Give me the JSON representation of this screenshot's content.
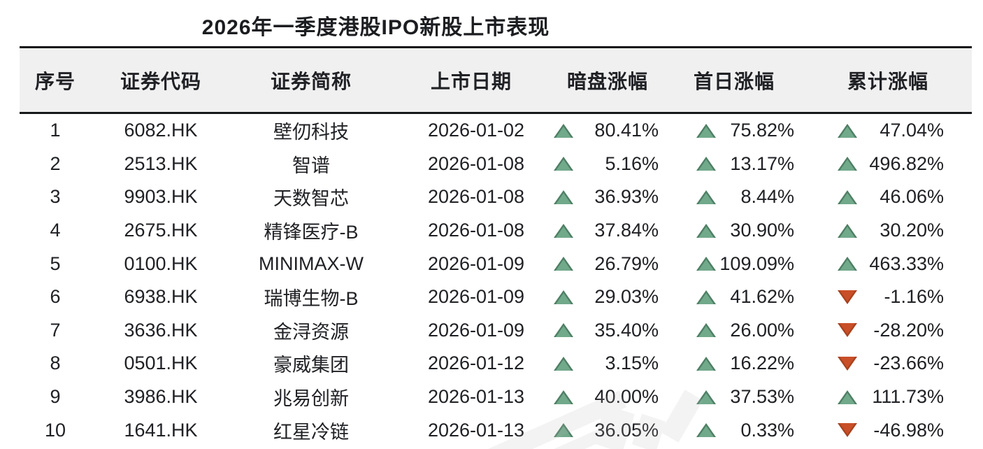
{
  "chart_data": {
    "type": "table",
    "title": "2026年一季度港股IPO新股上市表现",
    "columns": [
      "序号",
      "证券代码",
      "证券简称",
      "上市日期",
      "暗盘涨幅",
      "首日涨幅",
      "累计涨幅"
    ],
    "rows": [
      {
        "seq": "1",
        "code": "6082.HK",
        "name": "壁仞科技",
        "date": "2026-01-02",
        "dark": {
          "value": "80.41%",
          "dir": "up"
        },
        "first": {
          "value": "75.82%",
          "dir": "up"
        },
        "cumulative": {
          "value": "47.04%",
          "dir": "up"
        }
      },
      {
        "seq": "2",
        "code": "2513.HK",
        "name": "智谱",
        "date": "2026-01-08",
        "dark": {
          "value": "5.16%",
          "dir": "up"
        },
        "first": {
          "value": "13.17%",
          "dir": "up"
        },
        "cumulative": {
          "value": "496.82%",
          "dir": "up"
        }
      },
      {
        "seq": "3",
        "code": "9903.HK",
        "name": "天数智芯",
        "date": "2026-01-08",
        "dark": {
          "value": "36.93%",
          "dir": "up"
        },
        "first": {
          "value": "8.44%",
          "dir": "up"
        },
        "cumulative": {
          "value": "46.06%",
          "dir": "up"
        }
      },
      {
        "seq": "4",
        "code": "2675.HK",
        "name": "精锋医疗-B",
        "date": "2026-01-08",
        "dark": {
          "value": "37.84%",
          "dir": "up"
        },
        "first": {
          "value": "30.90%",
          "dir": "up"
        },
        "cumulative": {
          "value": "30.20%",
          "dir": "up"
        }
      },
      {
        "seq": "5",
        "code": "0100.HK",
        "name": "MINIMAX-W",
        "date": "2026-01-09",
        "dark": {
          "value": "26.79%",
          "dir": "up"
        },
        "first": {
          "value": "109.09%",
          "dir": "up"
        },
        "cumulative": {
          "value": "463.33%",
          "dir": "up"
        }
      },
      {
        "seq": "6",
        "code": "6938.HK",
        "name": "瑞博生物-B",
        "date": "2026-01-09",
        "dark": {
          "value": "29.03%",
          "dir": "up"
        },
        "first": {
          "value": "41.62%",
          "dir": "up"
        },
        "cumulative": {
          "value": "-1.16%",
          "dir": "down"
        }
      },
      {
        "seq": "7",
        "code": "3636.HK",
        "name": "金浔资源",
        "date": "2026-01-09",
        "dark": {
          "value": "35.40%",
          "dir": "up"
        },
        "first": {
          "value": "26.00%",
          "dir": "up"
        },
        "cumulative": {
          "value": "-28.20%",
          "dir": "down"
        }
      },
      {
        "seq": "8",
        "code": "0501.HK",
        "name": "豪威集团",
        "date": "2026-01-12",
        "dark": {
          "value": "3.15%",
          "dir": "up"
        },
        "first": {
          "value": "16.22%",
          "dir": "up"
        },
        "cumulative": {
          "value": "-23.66%",
          "dir": "down"
        }
      },
      {
        "seq": "9",
        "code": "3986.HK",
        "name": "兆易创新",
        "date": "2026-01-13",
        "dark": {
          "value": "40.00%",
          "dir": "up"
        },
        "first": {
          "value": "37.53%",
          "dir": "up"
        },
        "cumulative": {
          "value": "111.73%",
          "dir": "up"
        }
      },
      {
        "seq": "10",
        "code": "1641.HK",
        "name": "红星冷链",
        "date": "2026-01-13",
        "dark": {
          "value": "36.05%",
          "dir": "up"
        },
        "first": {
          "value": "0.33%",
          "dir": "up"
        },
        "cumulative": {
          "value": "-46.98%",
          "dir": "down"
        }
      }
    ],
    "layout": {
      "legend": "none",
      "grid": "off",
      "up_symbol": "triangle-up",
      "down_symbol": "triangle-down"
    }
  },
  "colors": {
    "up": "#71A98B",
    "up_border": "#4E7F64",
    "down": "#C94F28",
    "down_border": "#A8431F",
    "header_bg": "#F0F0F0",
    "text": "#202125",
    "rule": "#17181A"
  }
}
